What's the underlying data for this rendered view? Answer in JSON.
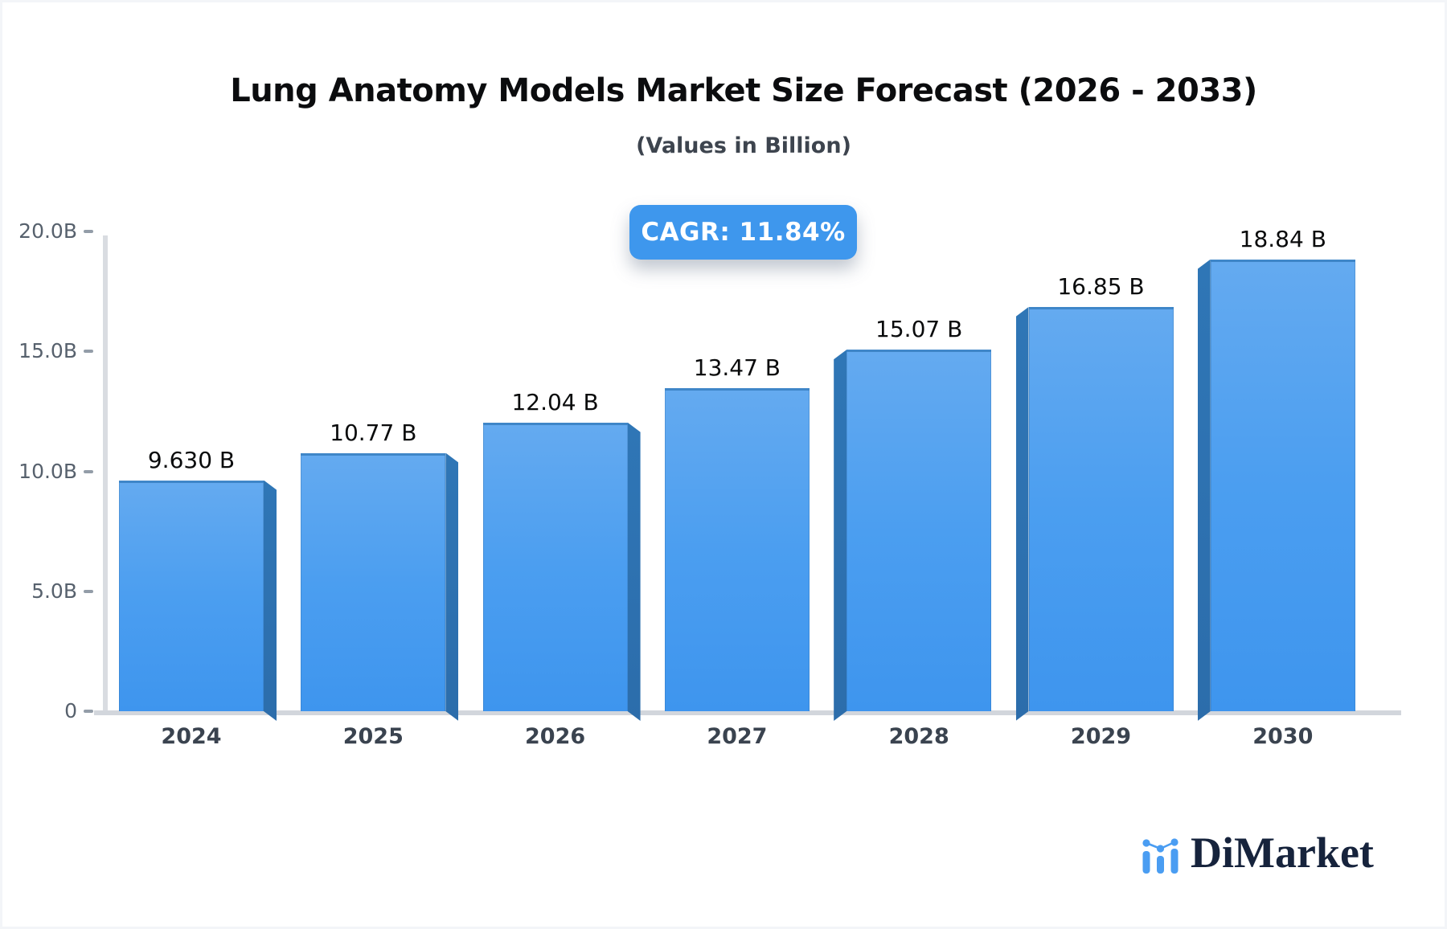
{
  "header": {
    "title": "Lung Anatomy Models Market Size Forecast (2026 - 2033)",
    "subtitle": "(Values in Billion)"
  },
  "badge": {
    "label": "CAGR: 11.84%"
  },
  "brand": {
    "name": "DiMarket",
    "icon": "bar-trend-logo-icon"
  },
  "colors": {
    "bar_face_top": "#64aaf0",
    "bar_face_bottom": "#3e95ee",
    "bar_side": "#2e73b3",
    "axis_line": "#d6dade",
    "tick_text": "#57616d",
    "year_text": "#3a434f",
    "value_text": "#0a0b0c",
    "badge_bg": "#3e97ed",
    "logo_blue": "#4a9df2",
    "logo_navy": "#16233c"
  },
  "chart_data": {
    "type": "bar",
    "title": "Lung Anatomy Models Market Size Forecast (2026 - 2033)",
    "subtitle": "(Values in Billion)",
    "annotation": "CAGR: 11.84%",
    "categories": [
      "2024",
      "2025",
      "2026",
      "2027",
      "2028",
      "2029",
      "2030"
    ],
    "values": [
      9.63,
      10.77,
      12.04,
      13.47,
      15.07,
      16.85,
      18.84
    ],
    "value_labels": [
      "9.630 B",
      "10.77 B",
      "12.04 B",
      "13.47 B",
      "15.07 B",
      "16.85 B",
      "18.84 B"
    ],
    "xlabel": "",
    "ylabel": "",
    "ylim": [
      0,
      20
    ],
    "y_ticks": [
      {
        "label": "20.0B",
        "value": 20
      },
      {
        "label": "15.0B",
        "value": 15
      },
      {
        "label": "10.0B",
        "value": 10
      },
      {
        "label": "5.0B",
        "value": 5
      },
      {
        "label": "0",
        "value": 0
      }
    ],
    "grid": false,
    "legend": false,
    "style": "3d-perspective-blue-bars"
  }
}
